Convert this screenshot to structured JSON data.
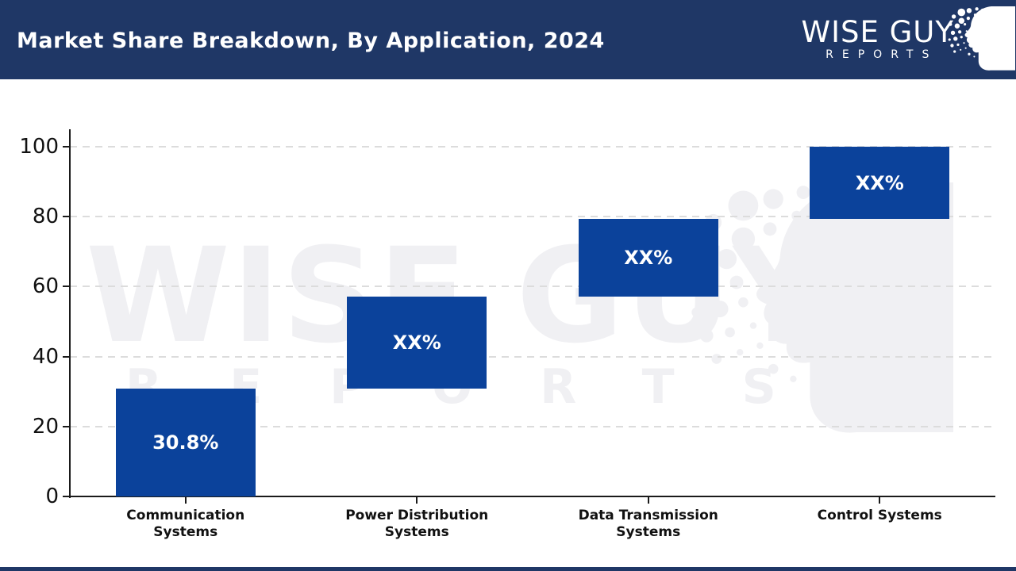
{
  "header": {
    "title": "Market Share Breakdown, By Application, 2024",
    "bg_color": "#1f3766",
    "logo": {
      "line1": "WISE GUY",
      "line2": "REPORTS"
    }
  },
  "watermark": {
    "line1": "WISE GUY",
    "line2": "REPORTS"
  },
  "chart_data": {
    "type": "bar",
    "subtype": "waterfall",
    "title": "Market Share Breakdown, By Application, 2024",
    "categories": [
      "Communication Systems",
      "Power Distribution Systems",
      "Data Transmission Systems",
      "Control Systems"
    ],
    "segments": [
      {
        "category": "Communication Systems",
        "start": 0,
        "end": 30.8,
        "label": "30.8%"
      },
      {
        "category": "Power Distribution Systems",
        "start": 30.8,
        "end": 57.2,
        "label": "XX%"
      },
      {
        "category": "Data Transmission Systems",
        "start": 57.2,
        "end": 79.3,
        "label": "XX%"
      },
      {
        "category": "Control Systems",
        "start": 79.3,
        "end": 100,
        "label": "XX%"
      }
    ],
    "y_ticks": [
      0,
      20,
      40,
      60,
      80,
      100
    ],
    "ylim": [
      0,
      105
    ],
    "xlabel": "",
    "ylabel": "",
    "bar_color": "#0b429b",
    "bar_label_color": "#ffffff",
    "grid": "horizontal-dashed",
    "legend": "none"
  },
  "footer": {
    "bg_color": "#1f3766"
  }
}
